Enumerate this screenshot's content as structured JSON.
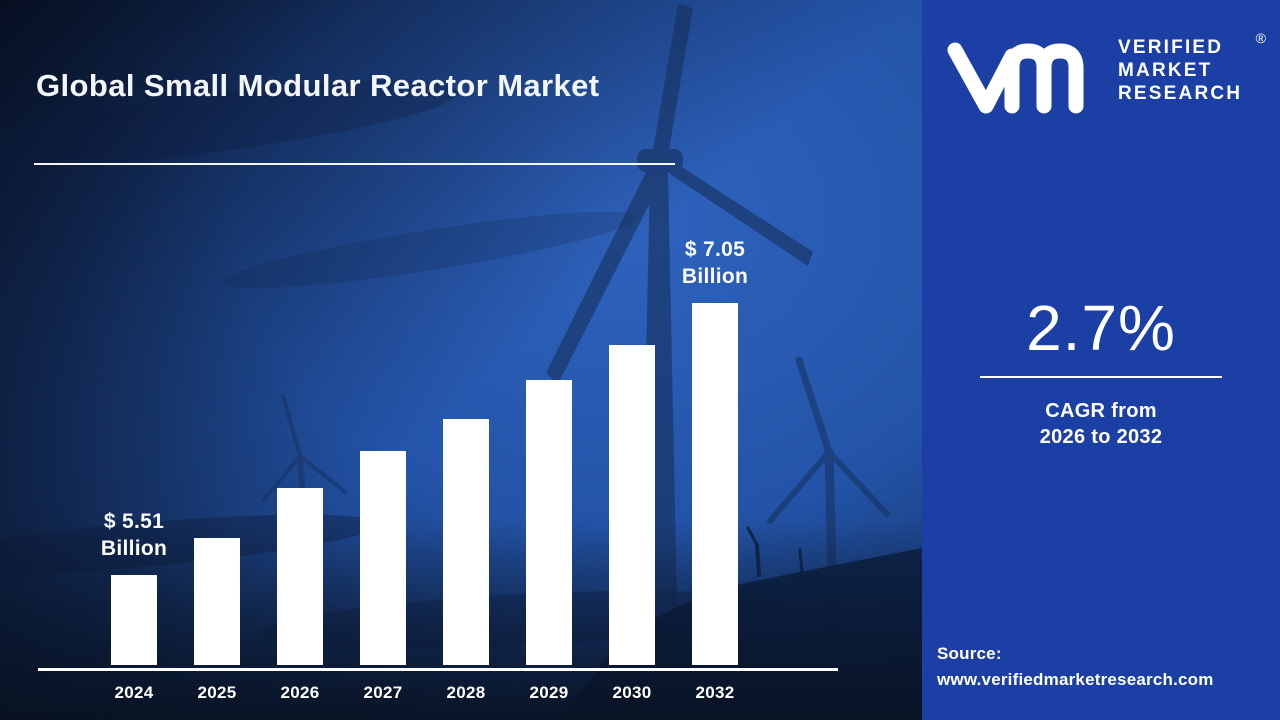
{
  "title": "Global Small Modular Reactor Market",
  "brand": {
    "logo_icon": "vm-monogram",
    "name_lines": [
      "VERIFIED",
      "MARKET",
      "RESEARCH"
    ],
    "registered_symbol": "®"
  },
  "side_panel": {
    "panel_color": "#1b3fa5",
    "cagr_value": "2.7%",
    "cagr_caption_line1": "CAGR from",
    "cagr_caption_line2": "2026 to 2032",
    "source_label": "Source:",
    "source_url": "www.verifiedmarketresearch.com"
  },
  "chart_data": {
    "type": "bar",
    "title": "Global Small Modular Reactor Market",
    "unit": "USD Billion",
    "categories": [
      "2024",
      "2025",
      "2026",
      "2027",
      "2028",
      "2029",
      "2030",
      "2032"
    ],
    "values": [
      5.51,
      5.72,
      6.0,
      6.21,
      6.39,
      6.61,
      6.81,
      7.05
    ],
    "labeled_points": [
      {
        "category": "2024",
        "label_line1": "$ 5.51",
        "label_line2": "Billion"
      },
      {
        "category": "2032",
        "label_line1": "$ 7.05",
        "label_line2": "Billion"
      }
    ],
    "ylim": [
      5.0,
      7.15
    ],
    "bar_color": "#ffffff",
    "grid": false,
    "legend": false,
    "xlabel": "",
    "ylabel": ""
  }
}
